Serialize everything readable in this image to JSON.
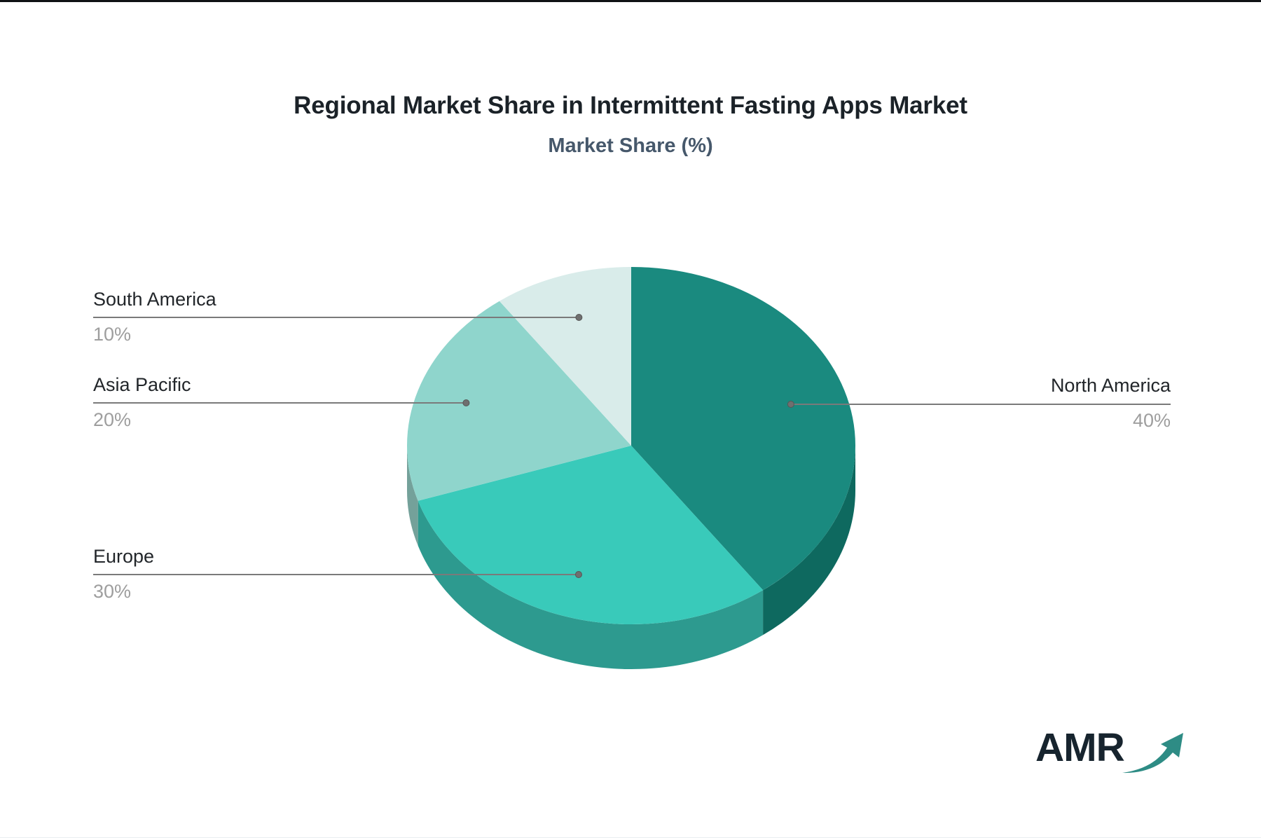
{
  "chart_data": {
    "type": "pie",
    "style": "3d",
    "title": "Regional Market Share in Intermittent Fasting Apps Market",
    "subtitle": "Market Share (%)",
    "unit": "%",
    "start_angle_deg": 0,
    "direction": "clockwise",
    "slices": [
      {
        "label": "North America",
        "value": 40,
        "pct_label": "40%",
        "color": "#1A8A7F",
        "side_color": "#0E695F",
        "label_side": "right"
      },
      {
        "label": "Europe",
        "value": 30,
        "pct_label": "30%",
        "color": "#39CABA",
        "side_color": "#2D9A8F",
        "label_side": "left"
      },
      {
        "label": "Asia Pacific",
        "value": 20,
        "pct_label": "20%",
        "color": "#8FD5CC",
        "side_color": "#74A19A",
        "label_side": "left"
      },
      {
        "label": "South America",
        "value": 10,
        "pct_label": "10%",
        "color": "#D9ECEA",
        "side_color": "#A9C9C4",
        "label_side": "left"
      }
    ],
    "legend": "none",
    "callout_style": "horizontal-leader-line-with-dot"
  },
  "colors": {
    "background": "#FFFFFF",
    "top_border": "#0F1215",
    "title_text": "#1B2228",
    "subtitle_text": "#46586B",
    "region_label_text": "#22262A",
    "pct_label_text": "#9E9E9E",
    "leader_line": "#7A7A7A",
    "leader_dot": "#6F6F6F"
  },
  "logo": {
    "text": "AMR",
    "text_color": "#17242E",
    "arrow_color": "#2E8C85"
  }
}
